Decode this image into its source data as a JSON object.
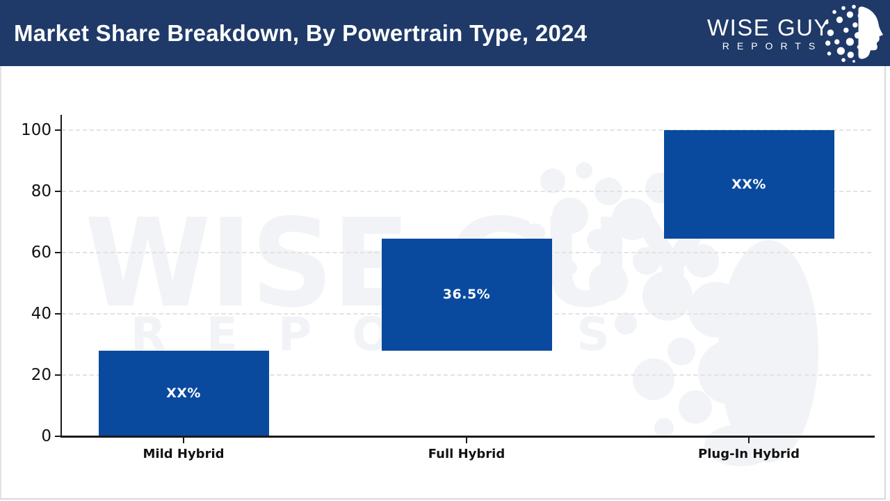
{
  "header": {
    "title": "Market Share Breakdown, By Powertrain Type, 2024",
    "logo": {
      "primary": "WISE GUY",
      "secondary": "REPORTS"
    }
  },
  "watermark": {
    "primary": "WISE GUY",
    "secondary": "REPORTS"
  },
  "chart_data": {
    "type": "bar",
    "subtype": "floating-waterfall-breakdown",
    "title": "Market Share Breakdown, By Powertrain Type, 2024",
    "categories": [
      "Mild Hybrid",
      "Full Hybrid",
      "Plug-In Hybrid"
    ],
    "segments": [
      {
        "category": "Mild Hybrid",
        "from": 0,
        "to": 28,
        "label": "XX%"
      },
      {
        "category": "Full Hybrid",
        "from": 28,
        "to": 64.5,
        "label": "36.5%"
      },
      {
        "category": "Plug-In Hybrid",
        "from": 64.5,
        "to": 100,
        "label": "XX%"
      }
    ],
    "ylim": [
      0,
      100
    ],
    "yticks": [
      0,
      20,
      40,
      60,
      80,
      100
    ],
    "xlabel": "",
    "ylabel": "",
    "legend": "none",
    "grid": {
      "horizontal": true,
      "style": "dashed"
    },
    "colors": {
      "bar": "#0a4a9e",
      "header_bg": "#1f3a68",
      "grid": "#e2e2e2",
      "axis": "#1a1a1a",
      "bar_label_text": "#ffffff"
    }
  }
}
